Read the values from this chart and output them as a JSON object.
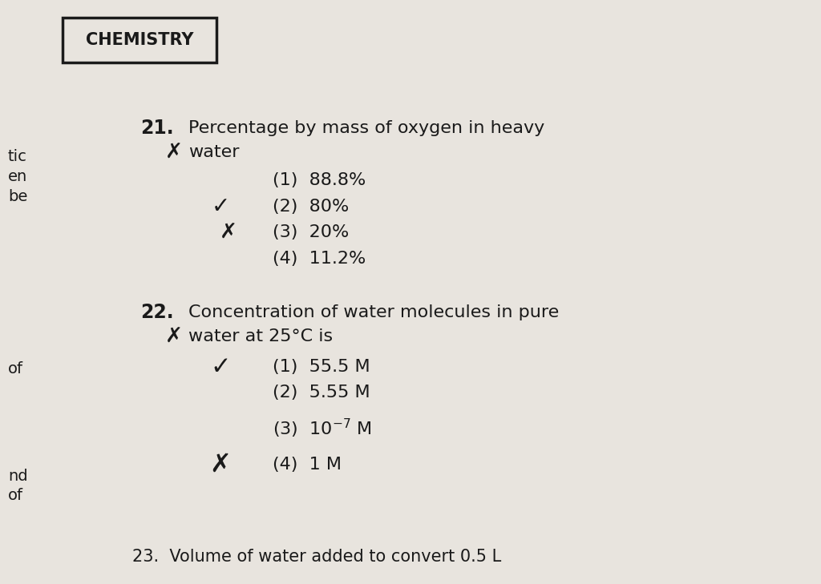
{
  "background_color": "#d4cec8",
  "paper_color": "#e8e4de",
  "box_label": "CHEMISTRY",
  "q21_num": "21.",
  "q21_line1": "Percentage by mass of oxygen in heavy",
  "q21_line2": "water",
  "q21_opts": [
    "(1)  88.8%",
    "(2)  80%",
    "(3)  20%",
    "(4)  11.2%"
  ],
  "q22_num": "22.",
  "q22_line1": "Concentration of water molecules in pure",
  "q22_line2": "water at 25°C is",
  "q22_opts": [
    "(1)  55.5 M",
    "(2)  5.55 M",
    "(3)  10⁻⁷ M",
    "(4)  1 M"
  ],
  "bottom_partial": "23.  Volume of water added to convert 0.5 L",
  "left_col": [
    "tic",
    "en",
    "be",
    "of",
    "nd",
    "of"
  ],
  "font_size": 16,
  "font_size_box": 15,
  "font_size_small": 14
}
